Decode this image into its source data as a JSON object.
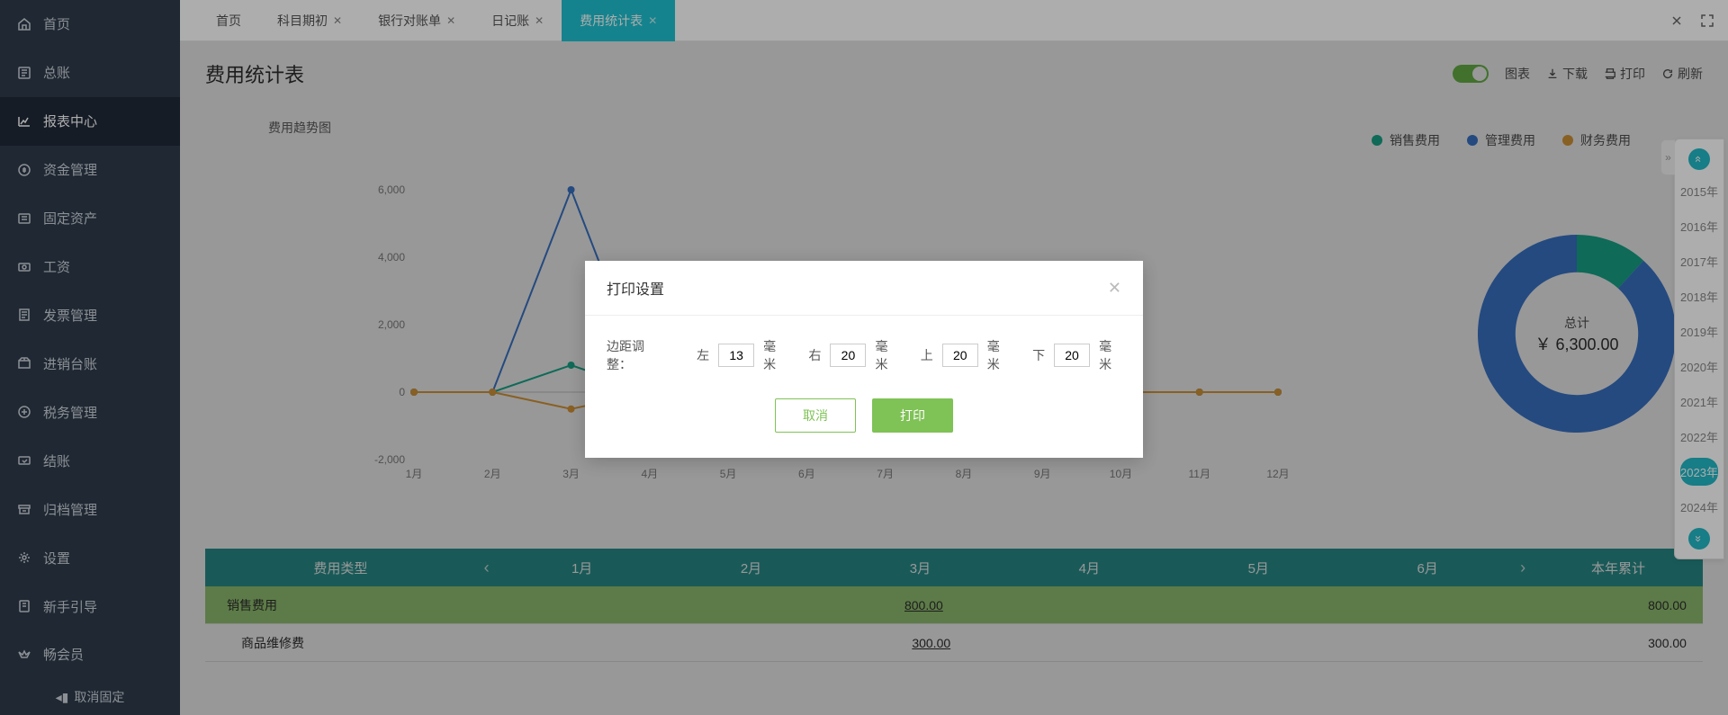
{
  "sidebar": {
    "items": [
      {
        "label": "首页",
        "icon": "home"
      },
      {
        "label": "总账",
        "icon": "ledger"
      },
      {
        "label": "报表中心",
        "icon": "report",
        "active": true
      },
      {
        "label": "资金管理",
        "icon": "funds"
      },
      {
        "label": "固定资产",
        "icon": "asset"
      },
      {
        "label": "工资",
        "icon": "salary"
      },
      {
        "label": "发票管理",
        "icon": "invoice"
      },
      {
        "label": "进销台账",
        "icon": "stock"
      },
      {
        "label": "税务管理",
        "icon": "tax"
      },
      {
        "label": "结账",
        "icon": "close"
      },
      {
        "label": "归档管理",
        "icon": "archive"
      },
      {
        "label": "设置",
        "icon": "gear"
      },
      {
        "label": "新手引导",
        "icon": "guide"
      },
      {
        "label": "畅会员",
        "icon": "vip"
      }
    ],
    "footer": "取消固定"
  },
  "tabs": {
    "items": [
      {
        "label": "首页",
        "closable": false
      },
      {
        "label": "科目期初",
        "closable": true
      },
      {
        "label": "银行对账单",
        "closable": true
      },
      {
        "label": "日记账",
        "closable": true
      },
      {
        "label": "费用统计表",
        "closable": true,
        "active": true
      }
    ]
  },
  "page": {
    "title": "费用统计表",
    "actions": {
      "toggle_label": "图表",
      "download": "下载",
      "print": "打印",
      "refresh": "刷新"
    }
  },
  "chart": {
    "title": "费用趋势图",
    "x_categories": [
      "1月",
      "2月",
      "3月",
      "4月",
      "5月",
      "6月",
      "7月",
      "8月",
      "9月",
      "10月",
      "11月",
      "12月"
    ],
    "y_min": -2000,
    "y_max": 6000,
    "y_step": 2000,
    "y_ticks_labels": [
      "-2,000",
      "0",
      "2,000",
      "4,000",
      "6,000"
    ],
    "series": [
      {
        "name": "销售费用",
        "color": "#1bb394",
        "values": [
          0,
          0,
          800,
          0,
          0,
          0,
          0,
          0,
          0,
          0,
          0,
          0
        ]
      },
      {
        "name": "管理费用",
        "color": "#3d7dd8",
        "values": [
          0,
          0,
          6000,
          0,
          0,
          0,
          0,
          0,
          0,
          0,
          0,
          0
        ]
      },
      {
        "name": "财务费用",
        "color": "#e8a23c",
        "values": [
          0,
          0,
          -500,
          0,
          0,
          0,
          0,
          0,
          0,
          0,
          0,
          0
        ]
      }
    ],
    "marker_radius": 4,
    "line_width": 2,
    "axis_color": "#cccccc",
    "label_color": "#888888",
    "label_fontsize": 12
  },
  "donut": {
    "total_label": "总计",
    "total_value": "￥ 6,300.00",
    "slices": [
      {
        "name": "销售费用",
        "value": 800,
        "color": "#1bb394"
      },
      {
        "name": "管理费用",
        "value": 6000,
        "color": "#3d7dd8"
      },
      {
        "name": "财务费用",
        "value": -500,
        "color": "#e8a23c"
      }
    ],
    "inner_ratio": 0.62,
    "outer_radius": 110
  },
  "table": {
    "header": {
      "cat": "费用类型",
      "months": [
        "1月",
        "2月",
        "3月",
        "4月",
        "5月",
        "6月"
      ],
      "total": "本年累计"
    },
    "rows": [
      {
        "name": "销售费用",
        "highlight": true,
        "indent": 0,
        "m": [
          "",
          "",
          "800.00",
          "",
          "",
          ""
        ],
        "total": "800.00",
        "link_col": 3
      },
      {
        "name": "商品维修费",
        "highlight": false,
        "indent": 1,
        "m": [
          "",
          "",
          "300.00",
          "",
          "",
          ""
        ],
        "total": "300.00",
        "link_col": 3
      }
    ]
  },
  "year_rail": {
    "years": [
      "2015年",
      "2016年",
      "2017年",
      "2018年",
      "2019年",
      "2020年",
      "2021年",
      "2022年",
      "2023年",
      "2024年"
    ],
    "active": "2023年"
  },
  "modal": {
    "title": "打印设置",
    "margin_label": "边距调整：",
    "left_label": "左",
    "left_value": "13",
    "right_label": "右",
    "right_value": "20",
    "top_label": "上",
    "top_value": "20",
    "bottom_label": "下",
    "bottom_value": "20",
    "unit": "毫米",
    "cancel": "取消",
    "print": "打印"
  }
}
